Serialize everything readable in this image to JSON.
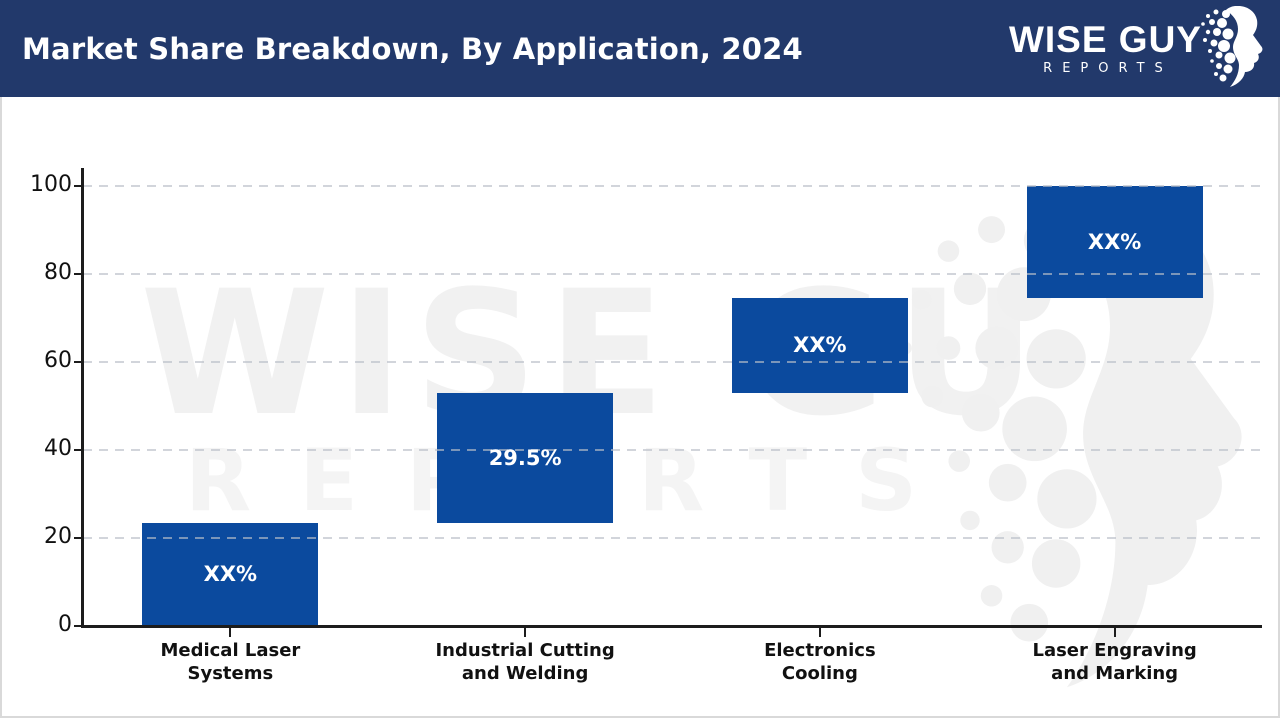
{
  "header": {
    "title": "Market Share Breakdown, By Application, 2024",
    "bg_color": "#22396b",
    "logo": {
      "line1": "WISE GUY",
      "line2": "REPORTS"
    }
  },
  "watermark": {
    "line1": "WISE GU",
    "line2": "REPORTS"
  },
  "chart_data": {
    "type": "bar",
    "subtype": "floating-waterfall",
    "title": "Market Share Breakdown, By Application, 2024",
    "categories": [
      "Medical Laser\nSystems",
      "Industrial Cutting\nand Welding",
      "Electronics\nCooling",
      "Laser Engraving\nand Marking"
    ],
    "bars": [
      {
        "start": 0,
        "end": 23.5,
        "label": "XX%"
      },
      {
        "start": 23.5,
        "end": 53,
        "label": "29.5%"
      },
      {
        "start": 53,
        "end": 74.5,
        "label": "XX%"
      },
      {
        "start": 74.5,
        "end": 100,
        "label": "XX%"
      }
    ],
    "ylim": [
      0,
      100
    ],
    "yticks": [
      0,
      20,
      40,
      60,
      80,
      100
    ],
    "xlabel": "",
    "ylabel": "",
    "grid": "dashed-horizontal",
    "legend": "none",
    "bar_color": "#0b4a9e",
    "axis_color": "#1c1c1c",
    "grid_color": "#c9cdd6",
    "value_label_color": "#ffffff"
  }
}
